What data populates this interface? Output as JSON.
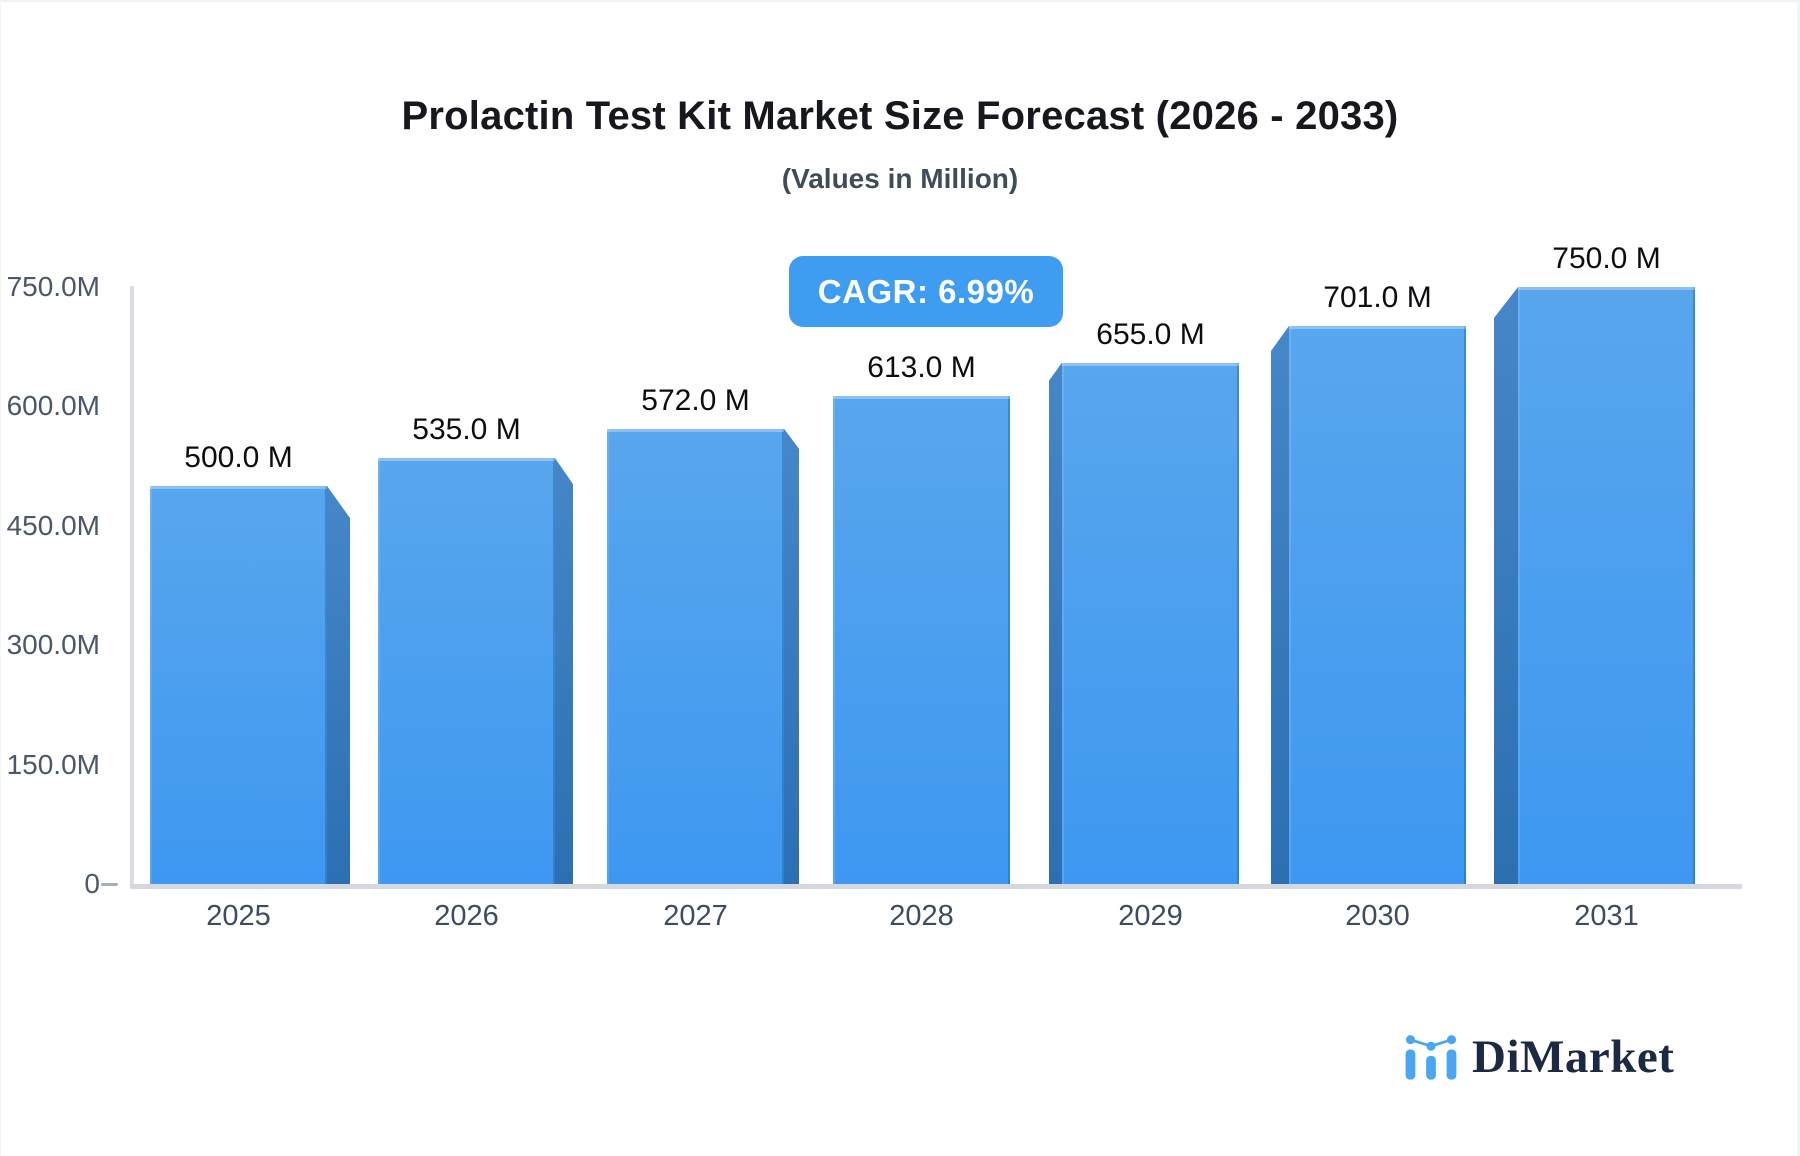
{
  "header": {
    "title": "Prolactin Test Kit Market Size Forecast (2026 - 2033)",
    "subtitle": "(Values in Million)"
  },
  "badge": {
    "label": "CAGR: 6.99%",
    "background": "#3e9cf1",
    "text_color": "#ffffff"
  },
  "chart_data": {
    "type": "bar",
    "title": "Prolactin Test Kit Market Size Forecast (2026 - 2033)",
    "subtitle": "(Values in Million)",
    "units": "Million",
    "cagr": "6.99%",
    "categories": [
      "2025",
      "2026",
      "2027",
      "2028",
      "2029",
      "2030",
      "2031"
    ],
    "values": [
      500.0,
      535.0,
      572.0,
      613.0,
      655.0,
      701.0,
      750.0
    ],
    "bar_value_labels": [
      "500.0 M",
      "535.0 M",
      "572.0 M",
      "613.0 M",
      "655.0 M",
      "701.0 M",
      "750.0 M"
    ],
    "y_axis": {
      "range": [
        0,
        750
      ],
      "ticks": [
        {
          "value": 0,
          "label": "0"
        },
        {
          "value": 150,
          "label": "150.0M"
        },
        {
          "value": 300,
          "label": "300.0M"
        },
        {
          "value": 450,
          "label": "450.0M"
        },
        {
          "value": 600,
          "label": "600.0M"
        },
        {
          "value": 750,
          "label": "750.0M"
        }
      ],
      "grid": false
    },
    "legend": false,
    "colors": {
      "bar_face_top": "#58a6ed",
      "bar_face_bottom": "#3e98f1",
      "bar_side_top": "#4587c8",
      "bar_side_bottom": "#2c6fb2",
      "axis_line": "#d5d9df",
      "tick_text": "#4c5868",
      "category_text": "#3e4c5f",
      "value_text": "#0c0d10"
    }
  },
  "logo": {
    "name": "DiMarket",
    "icon": "bar-chart-logo-icon",
    "text_color": "#1b2a42",
    "icon_color": "#4ba6f2"
  }
}
